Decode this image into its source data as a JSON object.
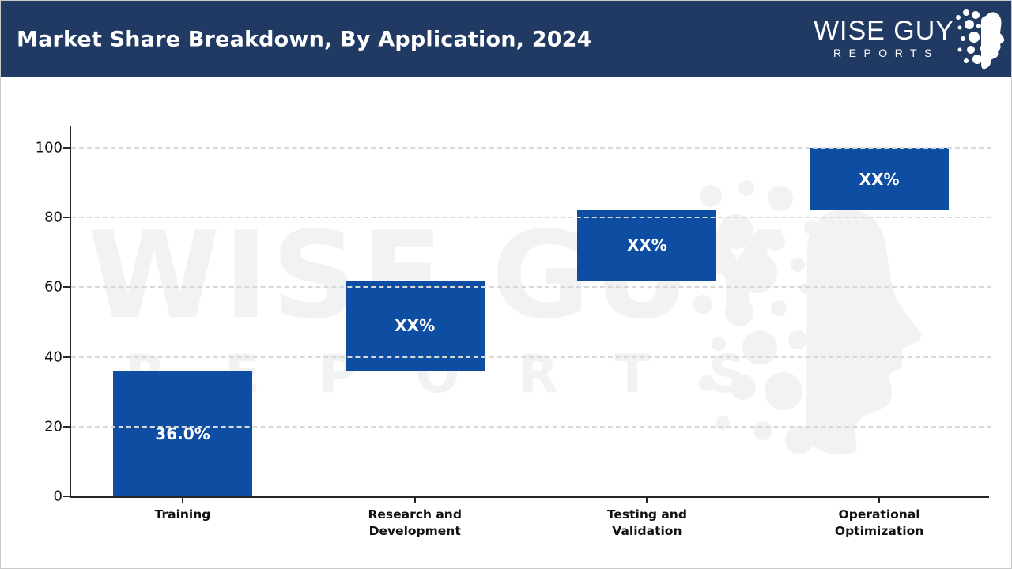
{
  "header": {
    "title": "Market Share Breakdown, By Application, 2024",
    "logo": {
      "wordmark": "WISE GUY",
      "subtext": "REPORTS"
    }
  },
  "watermark": {
    "wordmark": "WISE GUY",
    "subtext": "REPORTS"
  },
  "chart_data": {
    "type": "bar",
    "subtype": "waterfall",
    "title": "Market Share Breakdown, By Application, 2024",
    "categories": [
      "Training",
      "Research and Development",
      "Testing and Validation",
      "Operational Optimization"
    ],
    "segments": [
      {
        "category": "Training",
        "start": 0,
        "end": 36,
        "label": "36.0%"
      },
      {
        "category": "Research and Development",
        "start": 36,
        "end": 62,
        "label": "XX%"
      },
      {
        "category": "Testing and Validation",
        "start": 62,
        "end": 82,
        "label": "XX%"
      },
      {
        "category": "Operational Optimization",
        "start": 82,
        "end": 100,
        "label": "XX%"
      }
    ],
    "xlabel": "",
    "ylabel": "",
    "yticks": [
      0,
      20,
      40,
      60,
      80,
      100
    ],
    "ylim": [
      0,
      107
    ],
    "grid": "horizontal-dashed",
    "legend": "none",
    "bar_color": "#0d4da2",
    "bar_label_color": "#ffffff"
  },
  "colors": {
    "header_bg": "#213a63",
    "bar": "#0d4da2",
    "gridline": "#d8d8d8",
    "axis": "#262626",
    "watermark": "#f1f2f4",
    "page_border": "#c9c9c9"
  }
}
